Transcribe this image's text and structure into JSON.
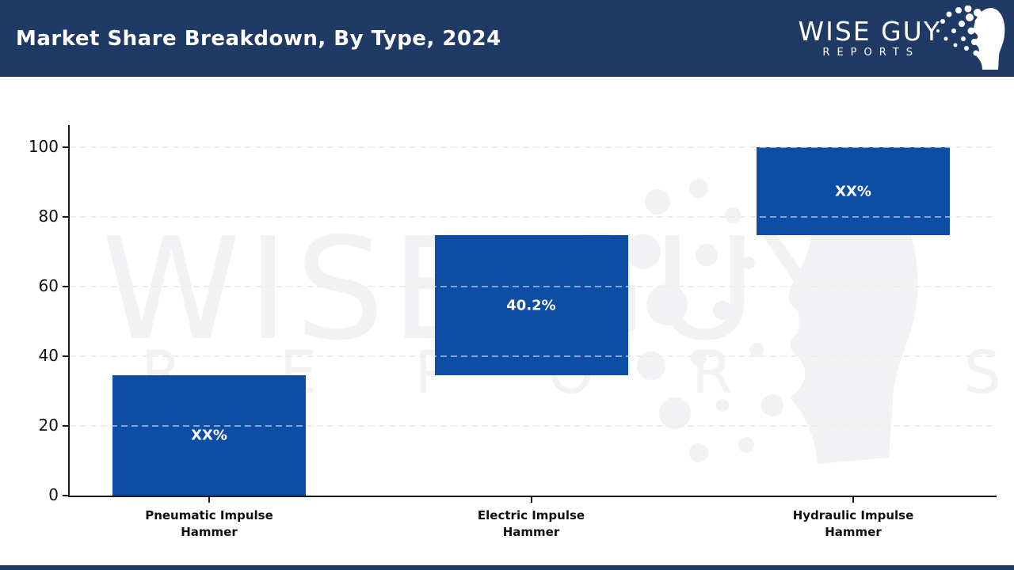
{
  "header": {
    "title": "Market Share Breakdown, By Type, 2024",
    "logo": {
      "line1": "WISE GUY",
      "line2": "REPORTS"
    },
    "bg_color": "#203a66"
  },
  "watermark": {
    "line1": "WISE GUY",
    "line2": "R E P O R T S"
  },
  "chart_data": {
    "type": "bar",
    "subtype": "floating-segment-waterfall",
    "title": "Market Share Breakdown, By Type, 2024",
    "categories": [
      "Pneumatic Impulse Hammer",
      "Electric Impulse Hammer",
      "Hydraulic Impulse Hammer"
    ],
    "bars": [
      {
        "category": "Pneumatic Impulse Hammer",
        "start": 0,
        "end": 34.5,
        "value_label": "XX%"
      },
      {
        "category": "Electric Impulse Hammer",
        "start": 34.5,
        "end": 74.7,
        "value_label": "40.2%"
      },
      {
        "category": "Hydraulic Impulse Hammer",
        "start": 74.7,
        "end": 100,
        "value_label": "XX%"
      }
    ],
    "yticks": [
      0,
      20,
      40,
      60,
      80,
      100
    ],
    "ylim": [
      0,
      105
    ],
    "xlabel": "",
    "ylabel": "",
    "grid": "horizontal-dashed",
    "legend": null,
    "bar_color": "#0d4da3",
    "bar_label_color": "#ffffff",
    "grid_color": "#dcdcdc",
    "axis_color": "#1a1a1a"
  }
}
